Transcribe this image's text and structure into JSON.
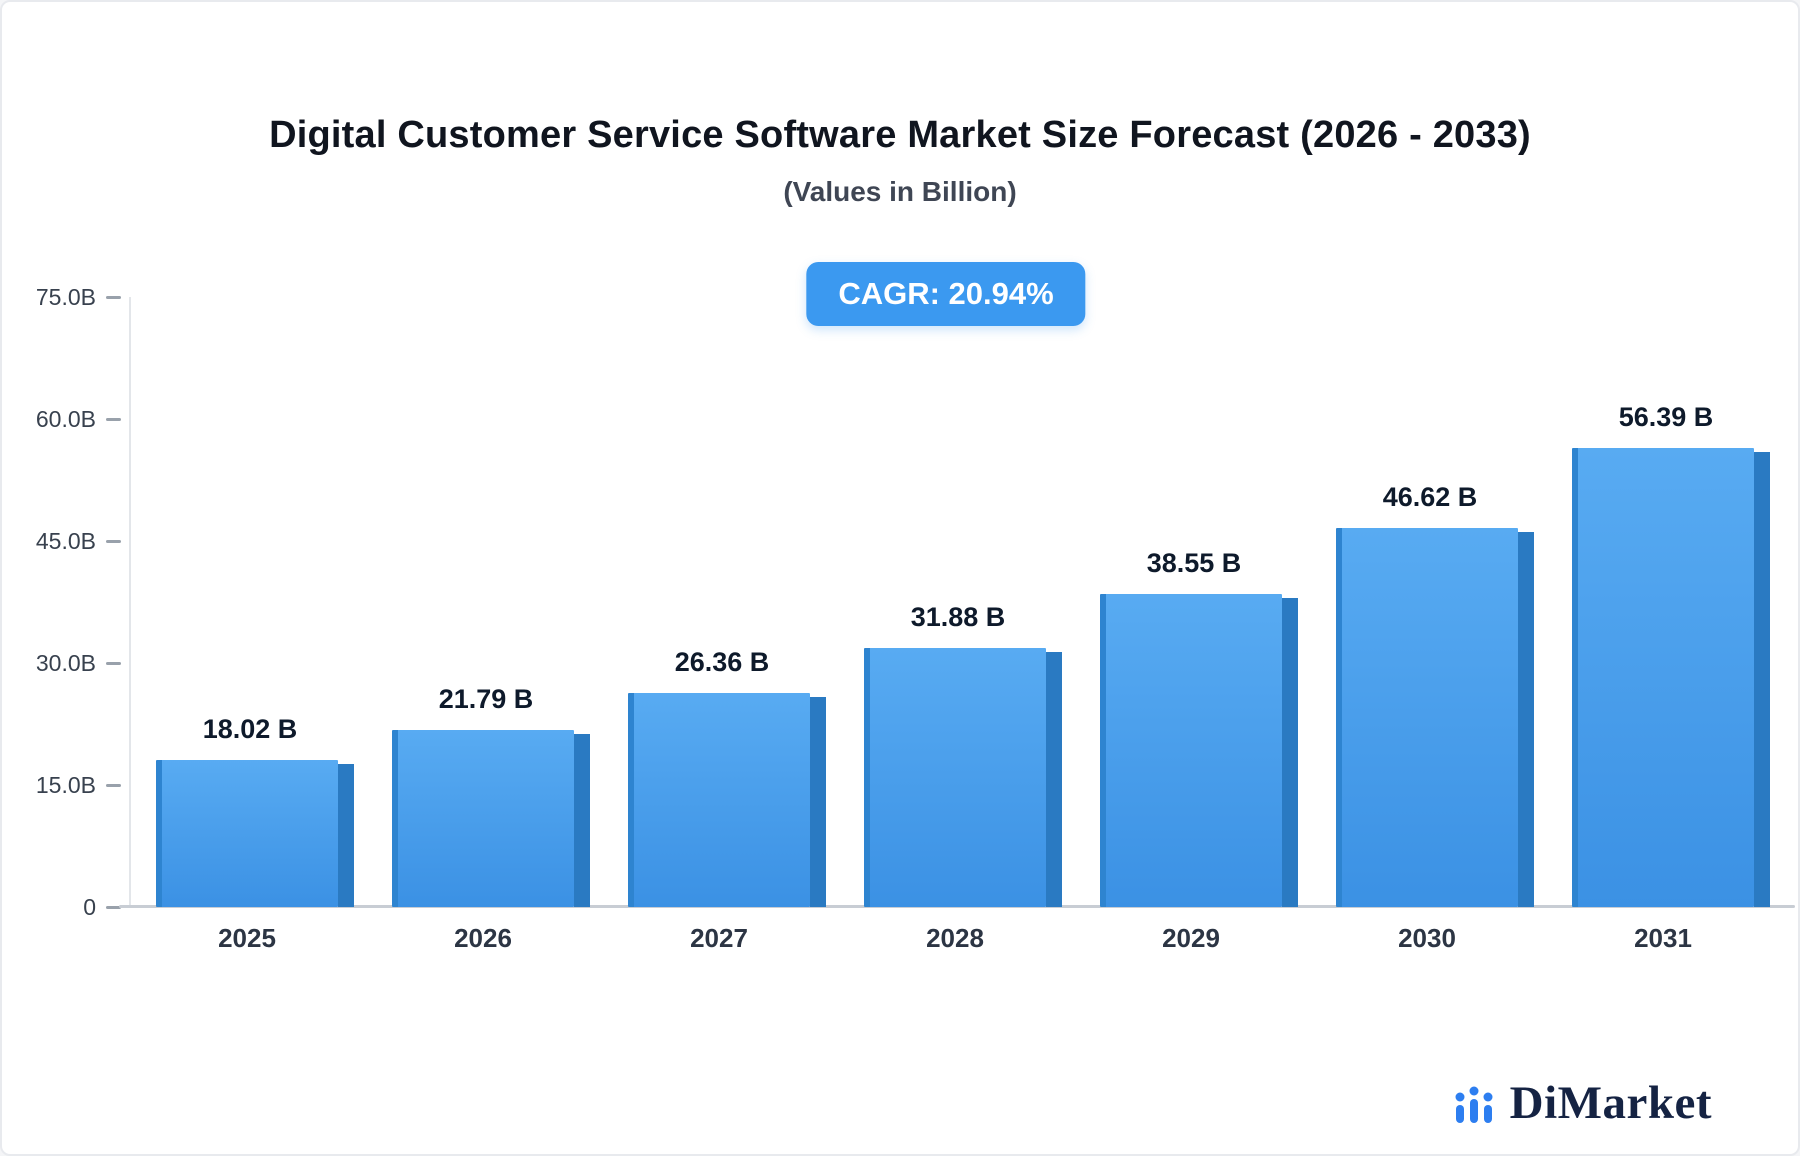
{
  "header": {
    "title": "Digital Customer Service Software Market Size Forecast (2026 - 2033)",
    "subtitle": "(Values in Billion)",
    "badge_label": "CAGR: 20.94%",
    "badge_bg": "#3b99f0",
    "badge_text_color": "#ffffff"
  },
  "logo": {
    "text": "DiMarket",
    "icon": "bar-chart-icon",
    "text_color": "#152343",
    "icon_color": "#2d7ef0"
  },
  "chart_data": {
    "type": "bar",
    "title": "Digital Customer Service Software Market Size Forecast (2026 - 2033)",
    "subtitle": "(Values in Billion)",
    "categories": [
      "2025",
      "2026",
      "2027",
      "2028",
      "2029",
      "2030",
      "2031"
    ],
    "values": [
      18.02,
      21.79,
      26.36,
      31.88,
      38.55,
      46.62,
      56.39
    ],
    "value_labels": [
      "18.02 B",
      "21.79 B",
      "26.36 B",
      "31.88 B",
      "38.55 B",
      "46.62 B",
      "56.39 B"
    ],
    "ylim": [
      0,
      75
    ],
    "y_ticks": [
      {
        "value": 0,
        "label": "0"
      },
      {
        "value": 15,
        "label": "15.0B"
      },
      {
        "value": 30,
        "label": "30.0B"
      },
      {
        "value": 45,
        "label": "45.0B"
      },
      {
        "value": 60,
        "label": "60.0B"
      },
      {
        "value": 75,
        "label": "75.0B"
      }
    ],
    "grid": false,
    "legend": false,
    "annotation": "CAGR: 20.94%",
    "bar_color_top": "#58abf2",
    "bar_color_bottom": "#3b91e4",
    "bar_edge_color": "#2e84d0",
    "bar_side_color": "#2a7ac2"
  }
}
